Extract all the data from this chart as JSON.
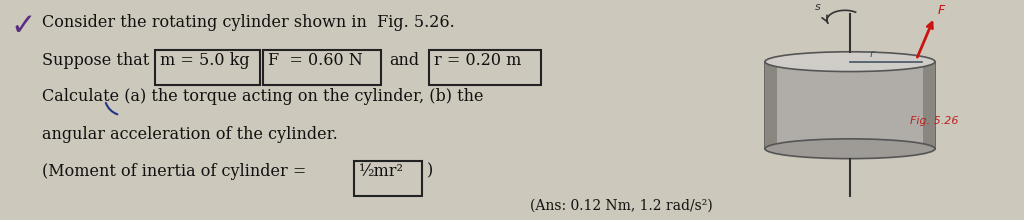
{
  "background_color": "#cdc8bc",
  "text_color": "#111111",
  "checkmark_color": "#5a2d82",
  "line1": "Consider the rotating cylinder shown in  Fig. 5.26.",
  "line2_prefix": "Suppose that",
  "box1": "m = 5.0 kg",
  "box2": "F  = 0.60 N",
  "line2_and": "and",
  "box3": "r = 0.20 m",
  "line3": "Calculate (a) the torque acting on the cylinder, (b) the",
  "line4": "angular acceleration of the cylinder.",
  "line5_prefix": "(Moment of inertia of cylinder = ",
  "box4": "½mr²",
  "line5_suffix": ")",
  "ans_text": "(Ans: 0.12 Nm, 1.2 rad/s²)",
  "fig_label": "Fig. 5.26",
  "font_size": 11.5,
  "ans_font_size": 10,
  "fig_font_size": 8,
  "cylinder_color_top": "#c0bdb8",
  "cylinder_color_body": "#a8a49e",
  "cylinder_color_bottom": "#989490",
  "cylinder_edge_color": "#555555",
  "axis_color": "#333333",
  "force_color": "#cc1111",
  "radius_color": "#445566"
}
